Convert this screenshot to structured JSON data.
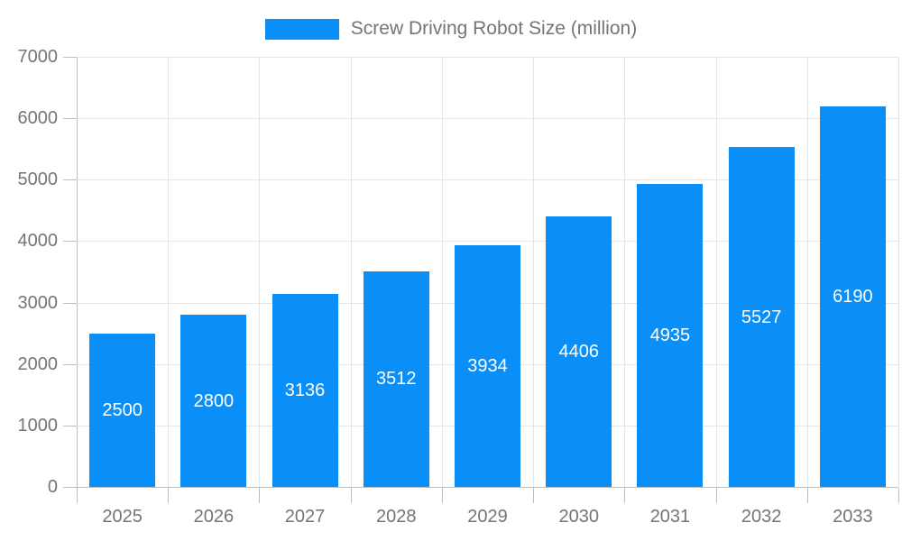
{
  "legend": {
    "position": "top",
    "label": "Screw Driving Robot Size (million)"
  },
  "chart_data": {
    "type": "bar",
    "title": "Screw Driving Robot Size (million)",
    "categories": [
      "2025",
      "2026",
      "2027",
      "2028",
      "2029",
      "2030",
      "2031",
      "2032",
      "2033"
    ],
    "values": [
      2500,
      2800,
      3136,
      3512,
      3934,
      4406,
      4935,
      5527,
      6190
    ],
    "xlabel": "",
    "ylabel": "",
    "ylim": [
      0,
      7000
    ],
    "ytick_step": 1000,
    "yticks": [
      0,
      1000,
      2000,
      3000,
      4000,
      5000,
      6000,
      7000
    ],
    "grid": true,
    "legend_position": "top",
    "bar_color": "#0a8ff9",
    "value_label_color": "#ffffff",
    "axis_text_color": "#757575",
    "grid_color": "#e5e5e5",
    "axis_line_color": "#bdbdbd"
  }
}
